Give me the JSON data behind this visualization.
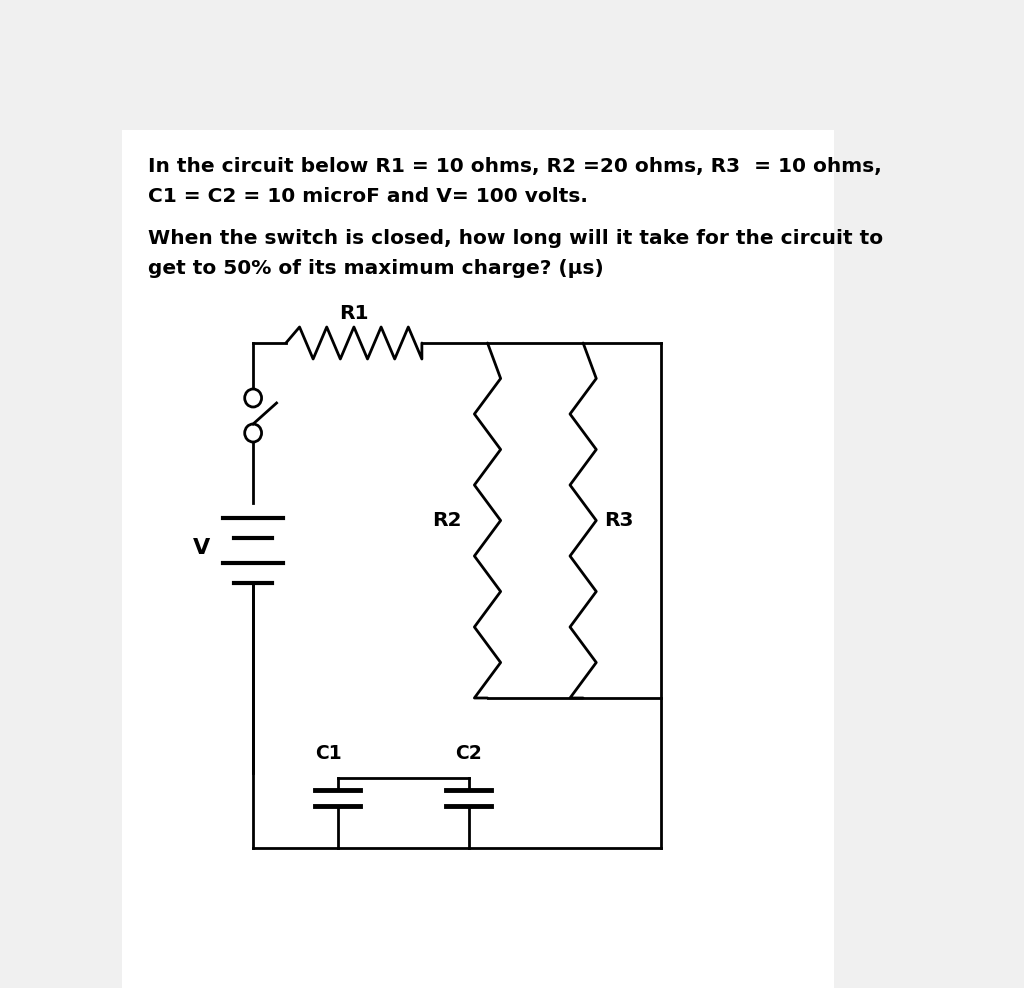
{
  "bg_color": "#f0f0f0",
  "panel_color": "#ffffff",
  "text_color": "#000000",
  "line_color": "#000000",
  "title_line1": "In the circuit below R1 = 10 ohms, R2 =20 ohms, R3  = 10 ohms,",
  "title_line2": "C1 = C2 = 10 microF and V= 100 volts.",
  "question_line1": "When the switch is closed, how long will it take for the circuit to",
  "question_line2": "get to 50% of its maximum charge? (μs)",
  "font_size_text": 14.5,
  "font_size_labels": 13.5,
  "font_size_V": 16
}
